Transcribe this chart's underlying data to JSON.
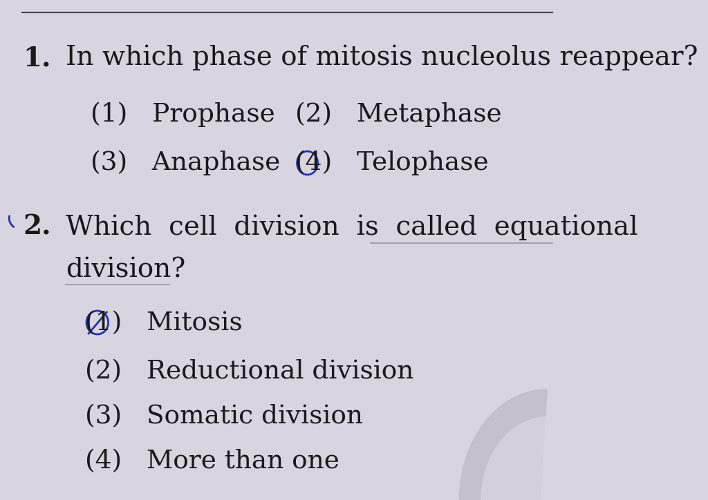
{
  "bg_color": "#d8d4e0",
  "text_color": "#1a1a1a",
  "q1_number": "1.",
  "q1_text": "In which phase of mitosis nucleolus reappear?",
  "q1_opt1_left": "(1)   Prophase",
  "q1_opt1_right": "(2)   Metaphase",
  "q1_opt2_left": "(3)   Anaphase",
  "q1_opt2_right": "(4)   Telophase",
  "q2_number": "2.",
  "q2_text_line1": "Which  cell  division  is  called  equational",
  "q2_text_line2": "division?",
  "q2_opt1": "(1)   Mitosis",
  "q2_opt2": "(2)   Reductional division",
  "q2_opt3": "(3)   Somatic division",
  "q2_opt4": "(4)   More than one",
  "font_size_q": 28,
  "font_size_opt": 27,
  "font_family": "DejaVu Serif",
  "figsize": [
    10.24,
    7.24
  ],
  "dpi": 100,
  "top_line_color": "#444444",
  "circle_color": "#2233aa",
  "underline_color": "#999999",
  "watermark_color": "#b8b4c0"
}
